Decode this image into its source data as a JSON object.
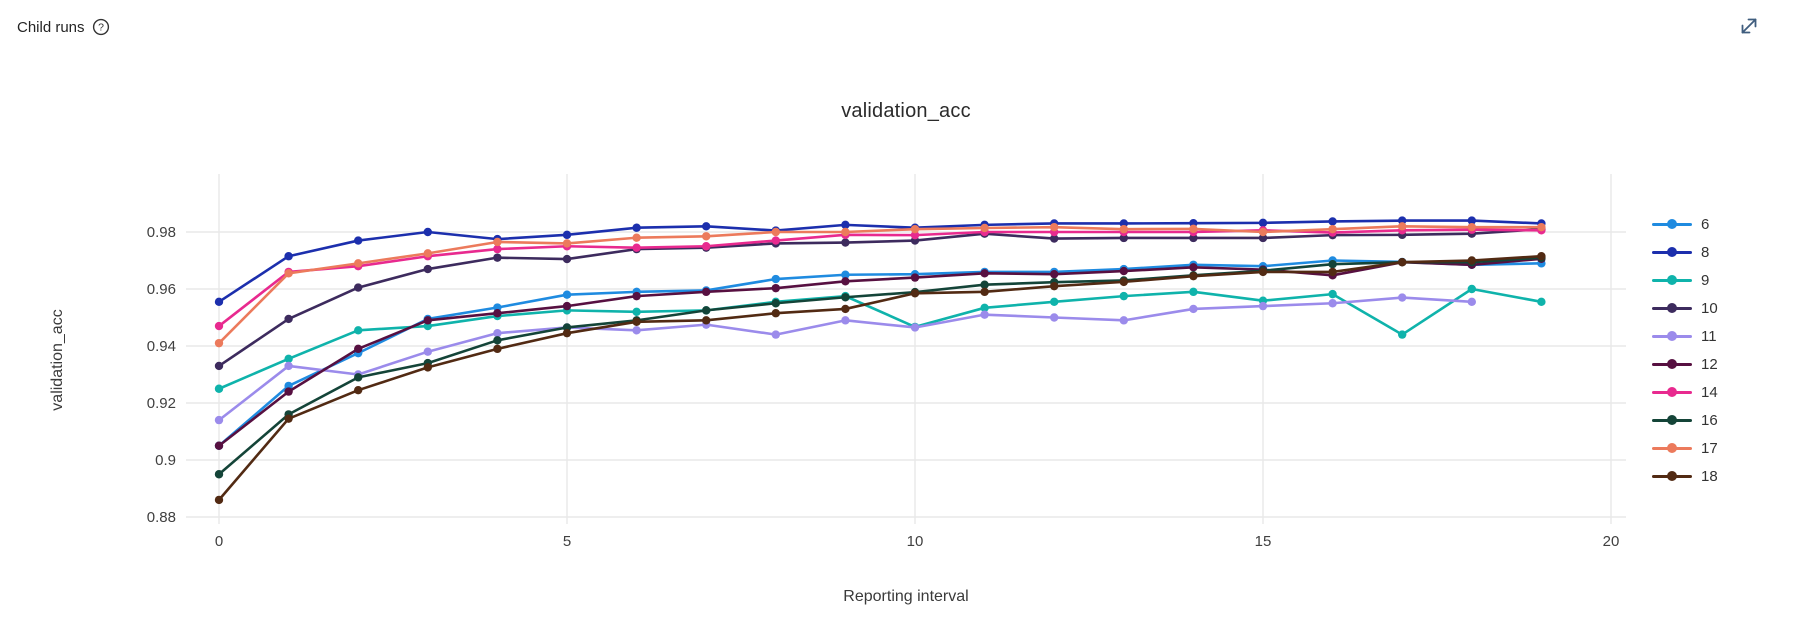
{
  "header": {
    "title": "Child runs",
    "help_icon": "question-circle-icon",
    "expand_icon": "diagonal-expand-icon"
  },
  "colors": {
    "background": "#ffffff",
    "grid": "#e8e8e8",
    "axis_text": "#404040",
    "title_text": "#2b2b2b",
    "header_text": "#242424",
    "icon": "#3f5d7e"
  },
  "chart_data": {
    "type": "line",
    "title": "validation_acc",
    "xlabel": "Reporting interval",
    "ylabel": "validation_acc",
    "x": [
      0,
      1,
      2,
      3,
      4,
      5,
      6,
      7,
      8,
      9,
      10,
      11,
      12,
      13,
      14,
      15,
      16,
      17,
      18,
      19
    ],
    "xticks": [
      0,
      5,
      10,
      15,
      20
    ],
    "yticks": [
      0.88,
      0.9,
      0.92,
      0.94,
      0.96,
      0.98
    ],
    "xlim": [
      -0.5,
      20.2
    ],
    "ylim": [
      0.878,
      1.0
    ],
    "grid": true,
    "marker": "circle",
    "legend_position": "right",
    "series": [
      {
        "name": "6",
        "color": "#1f8be0",
        "values": [
          0.905,
          0.926,
          0.9375,
          0.9495,
          0.9535,
          0.958,
          0.959,
          0.9595,
          0.9635,
          0.965,
          0.9652,
          0.966,
          0.966,
          0.967,
          0.9685,
          0.968,
          0.97,
          0.9695,
          0.9685,
          0.969
        ]
      },
      {
        "name": "8",
        "color": "#1c2fad",
        "values": [
          0.9555,
          0.9715,
          0.977,
          0.98,
          0.9775,
          0.979,
          0.9815,
          0.982,
          0.9805,
          0.9825,
          0.9815,
          0.9825,
          0.983,
          0.983,
          0.9831,
          0.9832,
          0.9837,
          0.984,
          0.984,
          0.983
        ]
      },
      {
        "name": "9",
        "color": "#0fb3ab",
        "values": [
          0.925,
          0.9355,
          0.9455,
          0.947,
          0.9505,
          0.9525,
          0.952,
          0.9525,
          0.9555,
          0.9575,
          0.9467,
          0.9534,
          0.9555,
          0.9575,
          0.959,
          0.9559,
          0.9582,
          0.944,
          0.96,
          0.9555
        ]
      },
      {
        "name": "10",
        "color": "#3d2b5e",
        "values": [
          0.933,
          0.9495,
          0.9605,
          0.967,
          0.971,
          0.9705,
          0.974,
          0.9745,
          0.976,
          0.9763,
          0.977,
          0.9794,
          0.9777,
          0.9779,
          0.9779,
          0.9779,
          0.9789,
          0.979,
          0.9794,
          0.981
        ]
      },
      {
        "name": "11",
        "color": "#9b8beb",
        "values": [
          0.914,
          0.933,
          0.93,
          0.938,
          0.9445,
          0.9465,
          0.9455,
          0.9475,
          0.944,
          0.949,
          0.9465,
          0.951,
          0.95,
          0.949,
          0.953,
          0.954,
          0.955,
          0.957,
          0.9555
        ]
      },
      {
        "name": "12",
        "color": "#571041",
        "values": [
          0.905,
          0.924,
          0.939,
          0.949,
          0.9515,
          0.954,
          0.9575,
          0.959,
          0.9603,
          0.9627,
          0.964,
          0.9655,
          0.9652,
          0.9663,
          0.9676,
          0.9668,
          0.9648,
          0.9694,
          0.9685,
          0.9706
        ]
      },
      {
        "name": "14",
        "color": "#e82a8f",
        "values": [
          0.947,
          0.966,
          0.968,
          0.9715,
          0.974,
          0.975,
          0.9745,
          0.975,
          0.977,
          0.979,
          0.9789,
          0.98,
          0.98,
          0.98,
          0.98,
          0.9806,
          0.9798,
          0.9806,
          0.9808,
          0.9806
        ]
      },
      {
        "name": "16",
        "color": "#144438",
        "values": [
          0.895,
          0.916,
          0.929,
          0.934,
          0.942,
          0.9465,
          0.949,
          0.9525,
          0.955,
          0.9571,
          0.9589,
          0.9615,
          0.9624,
          0.963,
          0.9648,
          0.9664,
          0.9687,
          0.9694,
          0.9694,
          0.971
        ]
      },
      {
        "name": "17",
        "color": "#ec7a5c",
        "values": [
          0.941,
          0.9655,
          0.969,
          0.9725,
          0.9765,
          0.976,
          0.978,
          0.9785,
          0.98,
          0.98,
          0.981,
          0.9814,
          0.9817,
          0.981,
          0.9811,
          0.98,
          0.981,
          0.982,
          0.9817,
          0.9817
        ]
      },
      {
        "name": "18",
        "color": "#522a13",
        "values": [
          0.886,
          0.9145,
          0.9245,
          0.9325,
          0.939,
          0.9445,
          0.9485,
          0.949,
          0.9515,
          0.953,
          0.9585,
          0.959,
          0.961,
          0.9625,
          0.9645,
          0.966,
          0.966,
          0.9694,
          0.97,
          0.9715
        ]
      }
    ]
  }
}
